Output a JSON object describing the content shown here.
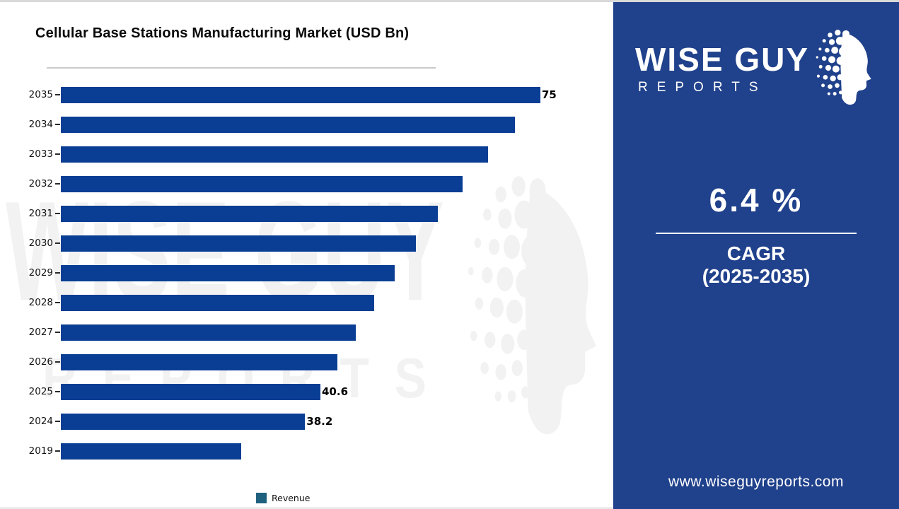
{
  "chart_data": {
    "type": "bar",
    "orientation": "horizontal",
    "title": "Cellular Base Stations Manufacturing Market (USD Bn)",
    "categories": [
      "2035",
      "2034",
      "2033",
      "2032",
      "2031",
      "2030",
      "2029",
      "2028",
      "2027",
      "2026",
      "2025",
      "2024",
      "2019"
    ],
    "values": [
      75,
      71.0,
      66.8,
      62.8,
      59.0,
      55.5,
      52.2,
      49.0,
      46.1,
      43.3,
      40.6,
      38.2,
      28.2
    ],
    "value_labels": [
      "75",
      "",
      "",
      "",
      "",
      "",
      "",
      "",
      "",
      "",
      "40.6",
      "38.2",
      ""
    ],
    "xlabel": "",
    "ylabel": "",
    "xlim": [
      0,
      86
    ],
    "grid": false,
    "legend": [
      "Revenue"
    ],
    "legend_position": "bottom-center",
    "bar_color": "#0a3e94",
    "legend_swatch_color": "#20607f"
  },
  "watermark": {
    "line1": "WISE GUY",
    "line2": "REPORTS"
  },
  "panel": {
    "bg_color": "#20418b",
    "logo_line1": "WISE GUY",
    "logo_line2": "REPORTS",
    "cagr_value": "6.4 %",
    "cagr_line1": "CAGR",
    "cagr_line2": "(2025-2035)",
    "website": "www.wiseguyreports.com"
  }
}
